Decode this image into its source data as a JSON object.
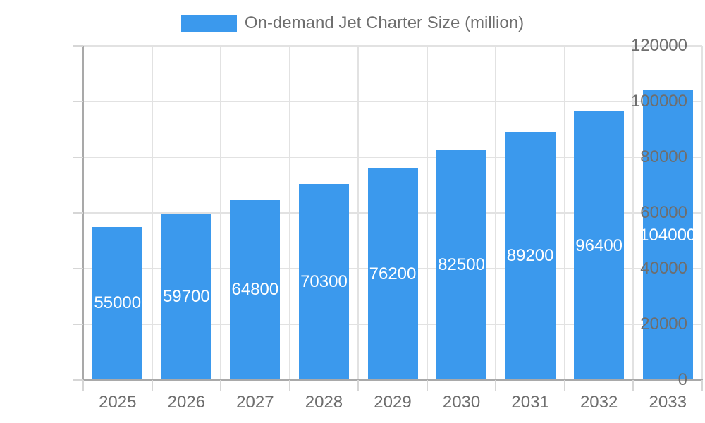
{
  "legend": {
    "label": "On-demand Jet Charter Size (million)"
  },
  "colors": {
    "bar": "#3b99ed",
    "axis_text": "#6e6e6e",
    "bar_label_text": "#ffffff",
    "gridline": "#e2e2e2",
    "axis_line": "#a9a9a9"
  },
  "chart_data": {
    "type": "bar",
    "title": "On-demand Jet Charter Size (million)",
    "series": [
      {
        "name": "On-demand Jet Charter Size (million)",
        "values": [
          55000,
          59700,
          64800,
          70300,
          76200,
          82500,
          89200,
          96400,
          104000
        ]
      }
    ],
    "categories": [
      "2025",
      "2026",
      "2027",
      "2028",
      "2029",
      "2030",
      "2031",
      "2032",
      "2033"
    ],
    "bar_value_labels": [
      "55000",
      "59700",
      "64800",
      "70300",
      "76200",
      "82500",
      "89200",
      "96400",
      "104000"
    ],
    "y_tick_labels": [
      "0",
      "20000",
      "40000",
      "60000",
      "80000",
      "100000",
      "120000"
    ],
    "xlabel": "",
    "ylabel": "",
    "ylim": [
      0,
      120000
    ],
    "ytick_step": 20000,
    "grid": true,
    "legend_position": "top-center",
    "bar_label_position": "inside-center"
  }
}
